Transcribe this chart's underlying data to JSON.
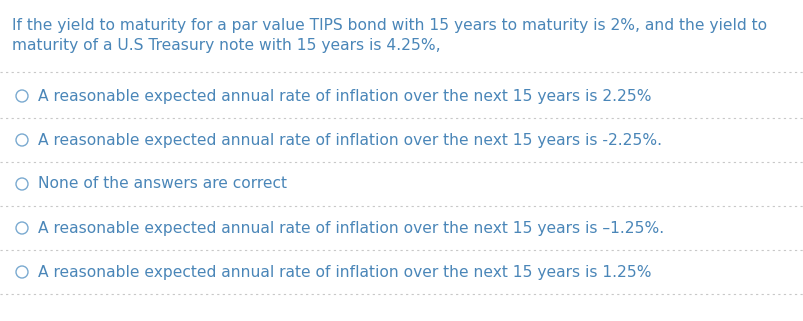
{
  "background_color": "#ffffff",
  "question_text_line1": "If the yield to maturity for a par value TIPS bond with 15 years to maturity is 2%, and the yield to",
  "question_text_line2": "maturity of a U.S Treasury note with 15 years is 4.25%,",
  "options": [
    "A reasonable expected annual rate of inflation over the next 15 years is 2.25%",
    "A reasonable expected annual rate of inflation over the next 15 years is -2.25%.",
    "None of the answers are correct",
    "A reasonable expected annual rate of inflation over the next 15 years is –1.25%.",
    "A reasonable expected annual rate of inflation over the next 15 years is 1.25%"
  ],
  "text_color": "#4a86b8",
  "divider_color": "#c8c8c8",
  "circle_color": "#7aaad0",
  "font_size_question": 11.2,
  "font_size_options": 11.2,
  "fig_width": 8.04,
  "fig_height": 3.21,
  "dpi": 100
}
